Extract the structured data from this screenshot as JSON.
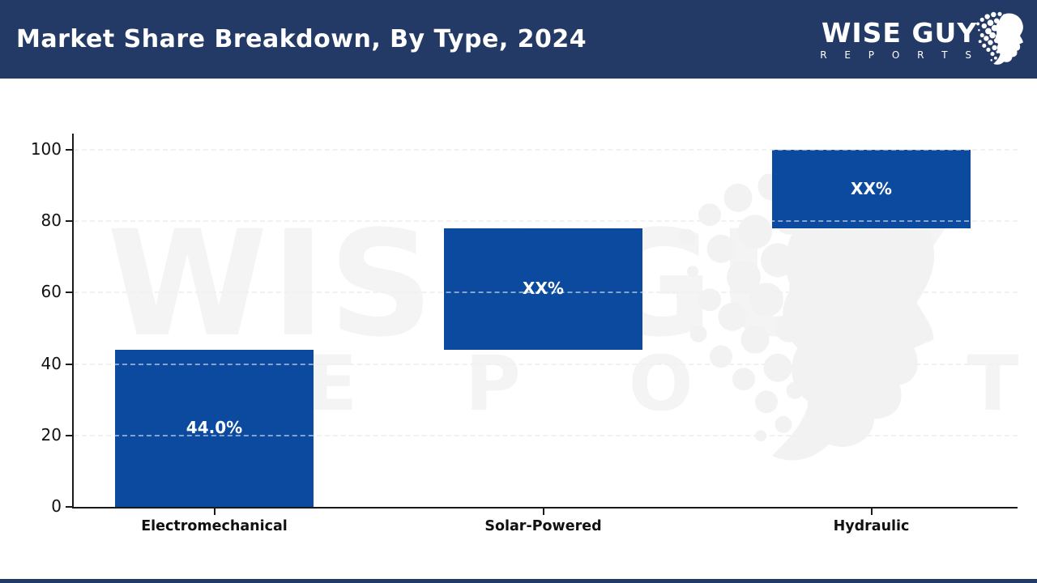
{
  "header": {
    "title": "Market Share Breakdown, By Type, 2024",
    "logo": {
      "line1": "WISE GUY",
      "line2": "R E P O R T S"
    }
  },
  "watermark": {
    "line1": "WISE GUY",
    "line2": "R E P O R T S"
  },
  "chart_data": {
    "type": "bar",
    "subtype": "floating-waterfall",
    "title": "Market Share Breakdown, By Type, 2024",
    "categories": [
      "Electromechanical",
      "Solar-Powered",
      "Hydraulic"
    ],
    "bars": [
      {
        "category": "Electromechanical",
        "start": 0,
        "end": 44,
        "label": "44.0%"
      },
      {
        "category": "Solar-Powered",
        "start": 44,
        "end": 78,
        "label": "XX%"
      },
      {
        "category": "Hydraulic",
        "start": 78,
        "end": 100,
        "label": "XX%"
      }
    ],
    "ylim": [
      0,
      100
    ],
    "yticks": [
      0,
      20,
      40,
      60,
      80,
      100
    ],
    "xlabel": "",
    "ylabel": "",
    "grid": "horizontal-dashed",
    "legend": "none",
    "bar_color": "#0b4a9e"
  },
  "colors": {
    "header_bg": "#233a66",
    "bar": "#0b4a9e",
    "gridline": "#e3e3e3",
    "axis": "#1a1a1a",
    "watermark": "#f4f4f4",
    "title_text": "#ffffff",
    "bar_label_text": "#ffffff"
  }
}
